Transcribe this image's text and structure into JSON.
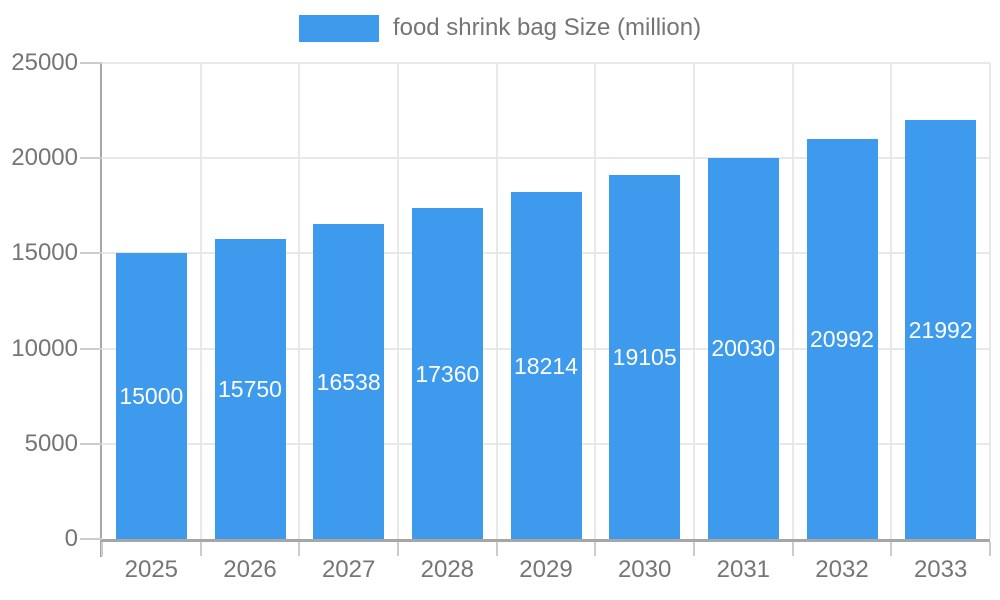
{
  "chart_data": {
    "type": "bar",
    "title": "food shrink bag Size (million)",
    "categories": [
      "2025",
      "2026",
      "2027",
      "2028",
      "2029",
      "2030",
      "2031",
      "2032",
      "2033"
    ],
    "values": [
      15000,
      15750,
      16538,
      17360,
      18214,
      19105,
      20030,
      20992,
      21992
    ],
    "series_name": "food shrink bag Size (million)",
    "xlabel": "",
    "ylabel": "",
    "ylim": [
      0,
      25000
    ],
    "yticks": [
      0,
      5000,
      10000,
      15000,
      20000,
      25000
    ],
    "grid": true,
    "legend_position": "top-center",
    "bar_color": "#3d9aec",
    "bar_label_color": "#ffffff",
    "axis_text_color": "#757575",
    "axis_line_color": "#a6a6a6",
    "gridline_color": "#e8e8e8"
  }
}
